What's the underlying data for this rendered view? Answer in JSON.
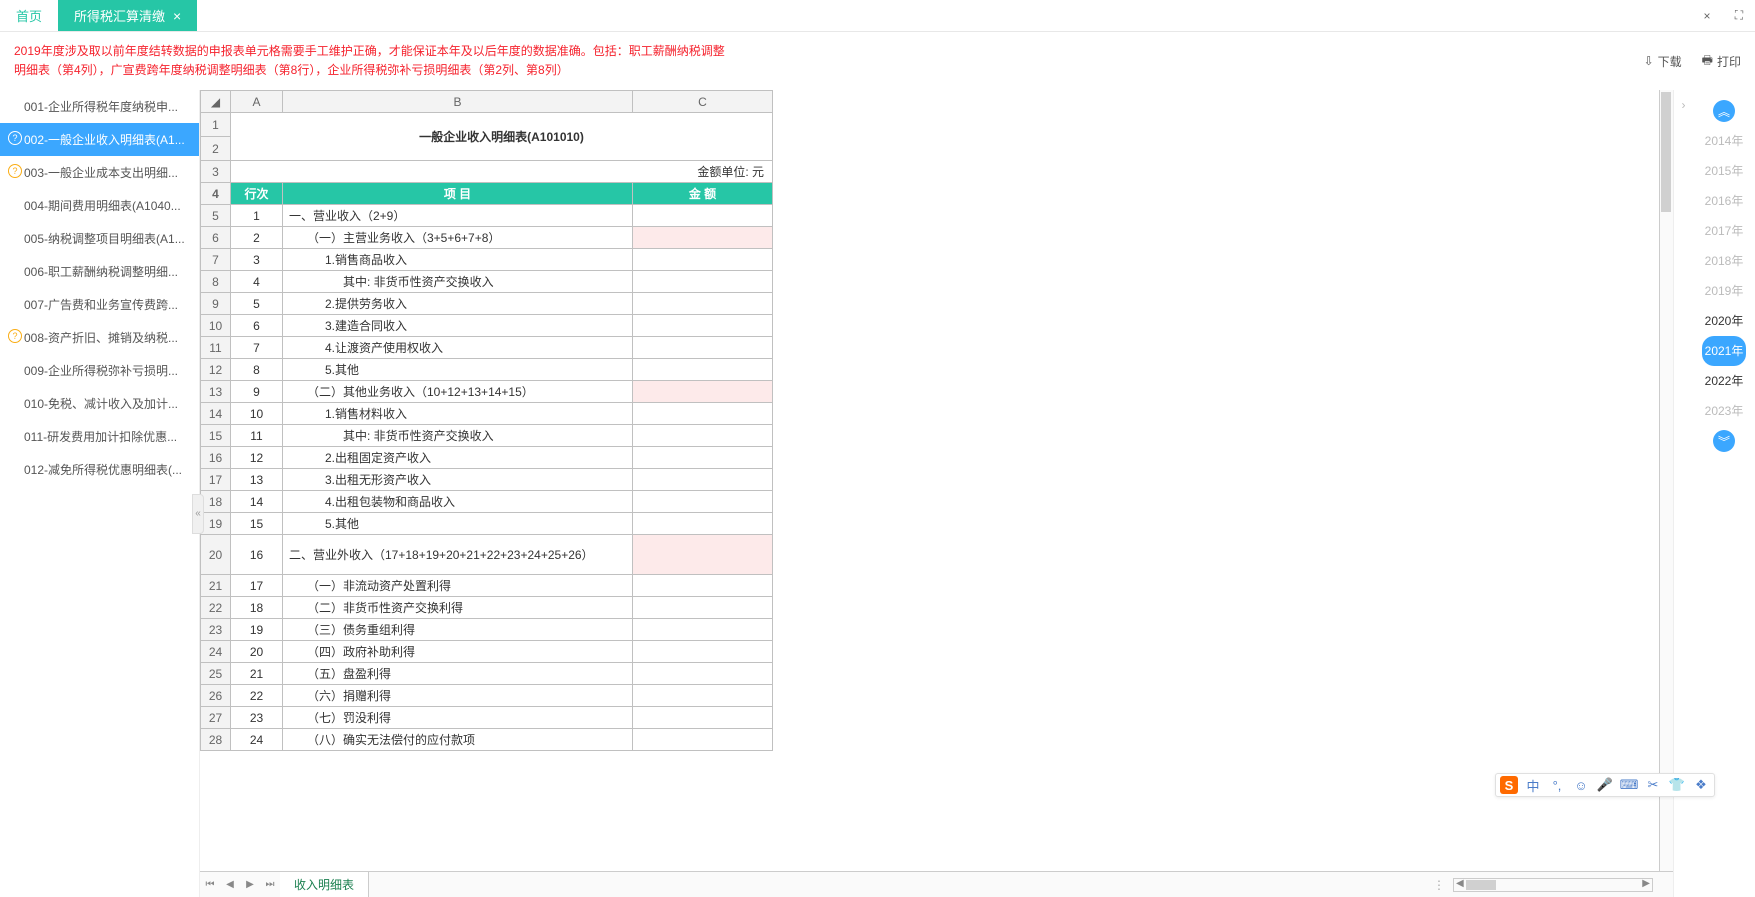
{
  "tabs": {
    "home": "首页",
    "active": "所得税汇算清缴"
  },
  "topIcons": {
    "close": "×",
    "expand": "⛶"
  },
  "warning": "2019年度涉及取以前年度结转数据的申报表单元格需要手工维护正确，才能保证本年及以后年度的数据准确。包括：职工薪酬纳税调整明细表（第4列），广宣费跨年度纳税调整明细表（第8行），企业所得税弥补亏损明细表（第2列、第8列）",
  "actions": {
    "download": "下载",
    "print": "打印"
  },
  "sidebar": [
    {
      "label": "001-企业所得税年度纳税申...",
      "warn": false
    },
    {
      "label": "002-一般企业收入明细表(A1...",
      "warn": true,
      "active": true
    },
    {
      "label": "003-一般企业成本支出明细...",
      "warn": true
    },
    {
      "label": "004-期间费用明细表(A1040...",
      "warn": false
    },
    {
      "label": "005-纳税调整项目明细表(A1...",
      "warn": false
    },
    {
      "label": "006-职工薪酬纳税调整明细...",
      "warn": false
    },
    {
      "label": "007-广告费和业务宣传费跨...",
      "warn": false
    },
    {
      "label": "008-资产折旧、摊销及纳税...",
      "warn": true
    },
    {
      "label": "009-企业所得税弥补亏损明...",
      "warn": false
    },
    {
      "label": "010-免税、减计收入及加计...",
      "warn": false
    },
    {
      "label": "011-研发费用加计扣除优惠...",
      "warn": false
    },
    {
      "label": "012-减免所得税优惠明细表(...",
      "warn": false
    }
  ],
  "sheet": {
    "title": "一般企业收入明细表(A101010)",
    "unit": "金额单位:  元",
    "cols": [
      "A",
      "B",
      "C"
    ],
    "header": {
      "seq": "行次",
      "item": "项  目",
      "amount": "金  额"
    },
    "rows": [
      {
        "n": 5,
        "seq": "1",
        "item": "一、营业收入（2+9）",
        "cls": "ind1",
        "pink": false
      },
      {
        "n": 6,
        "seq": "2",
        "item": "（一）主营业务收入（3+5+6+7+8）",
        "cls": "ind2",
        "pink": true
      },
      {
        "n": 7,
        "seq": "3",
        "item": "1.销售商品收入",
        "cls": "ind3",
        "pink": false
      },
      {
        "n": 8,
        "seq": "4",
        "item": "其中: 非货币性资产交换收入",
        "cls": "ind4",
        "pink": false
      },
      {
        "n": 9,
        "seq": "5",
        "item": "2.提供劳务收入",
        "cls": "ind3",
        "pink": false
      },
      {
        "n": 10,
        "seq": "6",
        "item": "3.建造合同收入",
        "cls": "ind3",
        "pink": false
      },
      {
        "n": 11,
        "seq": "7",
        "item": "4.让渡资产使用权收入",
        "cls": "ind3",
        "pink": false
      },
      {
        "n": 12,
        "seq": "8",
        "item": "5.其他",
        "cls": "ind3",
        "pink": false
      },
      {
        "n": 13,
        "seq": "9",
        "item": "（二）其他业务收入（10+12+13+14+15）",
        "cls": "ind2",
        "pink": true
      },
      {
        "n": 14,
        "seq": "10",
        "item": "1.销售材料收入",
        "cls": "ind3",
        "pink": false
      },
      {
        "n": 15,
        "seq": "11",
        "item": "其中: 非货币性资产交换收入",
        "cls": "ind4",
        "pink": false
      },
      {
        "n": 16,
        "seq": "12",
        "item": "2.出租固定资产收入",
        "cls": "ind3",
        "pink": false
      },
      {
        "n": 17,
        "seq": "13",
        "item": "3.出租无形资产收入",
        "cls": "ind3",
        "pink": false
      },
      {
        "n": 18,
        "seq": "14",
        "item": "4.出租包装物和商品收入",
        "cls": "ind3",
        "pink": false
      },
      {
        "n": 19,
        "seq": "15",
        "item": "5.其他",
        "cls": "ind3",
        "pink": false
      },
      {
        "n": 20,
        "seq": "16",
        "item": "二、营业外收入（17+18+19+20+21+22+23+24+25+26）",
        "cls": "ind1",
        "pink": true,
        "tall": true
      },
      {
        "n": 21,
        "seq": "17",
        "item": "（一）非流动资产处置利得",
        "cls": "ind2",
        "pink": false
      },
      {
        "n": 22,
        "seq": "18",
        "item": "（二）非货币性资产交换利得",
        "cls": "ind2",
        "pink": false
      },
      {
        "n": 23,
        "seq": "19",
        "item": "（三）债务重组利得",
        "cls": "ind2",
        "pink": false
      },
      {
        "n": 24,
        "seq": "20",
        "item": "（四）政府补助利得",
        "cls": "ind2",
        "pink": false
      },
      {
        "n": 25,
        "seq": "21",
        "item": "（五）盘盈利得",
        "cls": "ind2",
        "pink": false
      },
      {
        "n": 26,
        "seq": "22",
        "item": "（六）捐赠利得",
        "cls": "ind2",
        "pink": false
      },
      {
        "n": 27,
        "seq": "23",
        "item": "（七）罚没利得",
        "cls": "ind2",
        "pink": false
      },
      {
        "n": 28,
        "seq": "24",
        "item": "（八）确实无法偿付的应付款项",
        "cls": "ind2",
        "pink": false
      }
    ],
    "tabName": "收入明细表"
  },
  "years": [
    {
      "y": "2014年",
      "state": "far"
    },
    {
      "y": "2015年",
      "state": "far"
    },
    {
      "y": "2016年",
      "state": "far"
    },
    {
      "y": "2017年",
      "state": "far"
    },
    {
      "y": "2018年",
      "state": "far"
    },
    {
      "y": "2019年",
      "state": "far"
    },
    {
      "y": "2020年",
      "state": "near"
    },
    {
      "y": "2021年",
      "state": "active"
    },
    {
      "y": "2022年",
      "state": "near"
    },
    {
      "y": "2023年",
      "state": "far"
    }
  ],
  "railIcons": {
    "up": "︽",
    "down": "︾"
  },
  "ime": [
    "中",
    "°,",
    "☺",
    "🎤",
    "⌨",
    "✂",
    "👕",
    "❖"
  ]
}
